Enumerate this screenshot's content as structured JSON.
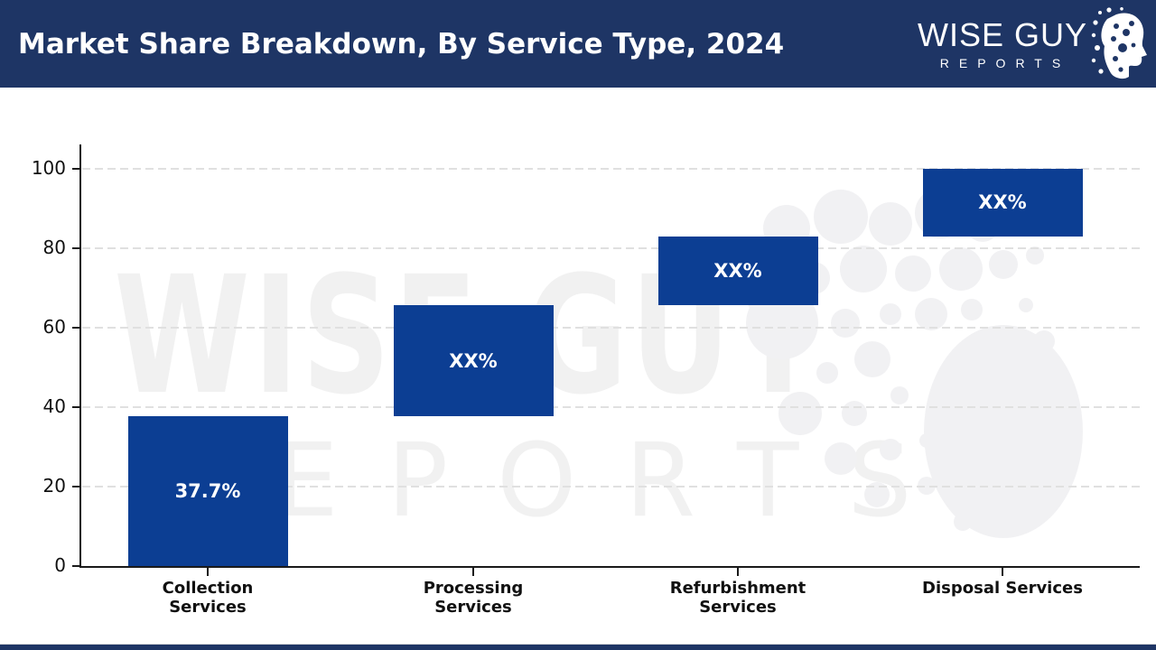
{
  "header": {
    "title": "Market Share Breakdown, By Service Type, 2024",
    "logo": {
      "line1": "WISE GUY",
      "line2": "REPORTS"
    }
  },
  "watermark": {
    "line1": "WISE GUY",
    "line2": "REPORTS"
  },
  "colors": {
    "header_bg": "#1e3565",
    "bar_blue": "#0c3e93",
    "grid_gray": "#e0e0e0",
    "watermark_gray": "#f1f1f1",
    "axis_black": "#1a1a1a",
    "bar_label_white": "#ffffff"
  },
  "chart_data": {
    "type": "bar",
    "variant": "waterfall",
    "title": "Market Share Breakdown, By Service Type, 2024",
    "categories": [
      "Collection Services",
      "Processing Services",
      "Refurbishment Services",
      "Disposal Services"
    ],
    "category_lines": [
      [
        "Collection",
        "Services"
      ],
      [
        "Processing",
        "Services"
      ],
      [
        "Refurbishment",
        "Services"
      ],
      [
        "Disposal Services"
      ]
    ],
    "segments": [
      {
        "start": 0,
        "end": 37.7,
        "label": "37.7%"
      },
      {
        "start": 37.7,
        "end": 65.7,
        "label": "XX%"
      },
      {
        "start": 65.7,
        "end": 83.0,
        "label": "XX%"
      },
      {
        "start": 83.0,
        "end": 100,
        "label": "XX%"
      }
    ],
    "ylim": [
      0,
      100
    ],
    "y_ticks": [
      0,
      20,
      40,
      60,
      80,
      100
    ],
    "xlabel": "",
    "ylabel": "",
    "grid": "horizontal-dashed",
    "legend": "none",
    "bar_color": "#0c3e93",
    "value_label_color": "#ffffff"
  }
}
